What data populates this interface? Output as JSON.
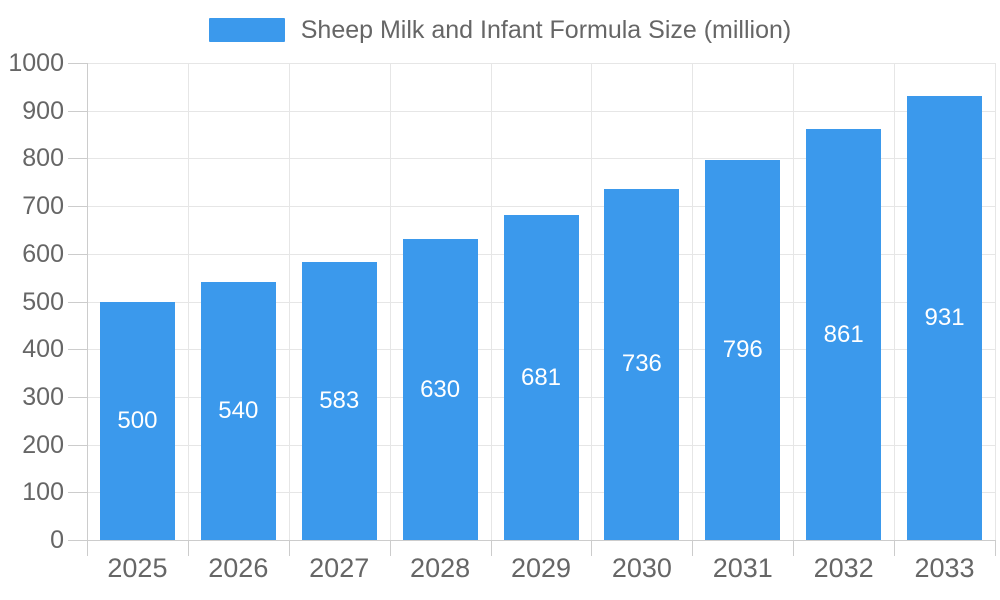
{
  "legend": {
    "label": "Sheep Milk and Infant Formula Size (million)"
  },
  "chart_data": {
    "type": "bar",
    "title": "Sheep Milk and Infant Formula Size (million)",
    "categories": [
      "2025",
      "2026",
      "2027",
      "2028",
      "2029",
      "2030",
      "2031",
      "2032",
      "2033"
    ],
    "values": [
      500,
      540,
      583,
      630,
      681,
      736,
      796,
      861,
      931
    ],
    "xlabel": "",
    "ylabel": "",
    "ylim": [
      0,
      1000
    ],
    "ytick_interval": 100,
    "ytick_labels": [
      "0",
      "100",
      "200",
      "300",
      "400",
      "500",
      "600",
      "700",
      "800",
      "900",
      "1000"
    ],
    "grid": true,
    "legend_position": "top",
    "colors": {
      "bar": "#3B99EC",
      "bar_label_text": "#FFFFFF",
      "axis_text": "#666666",
      "gridline": "#E6E6E6",
      "axis_line": "#CCCCCC"
    }
  }
}
